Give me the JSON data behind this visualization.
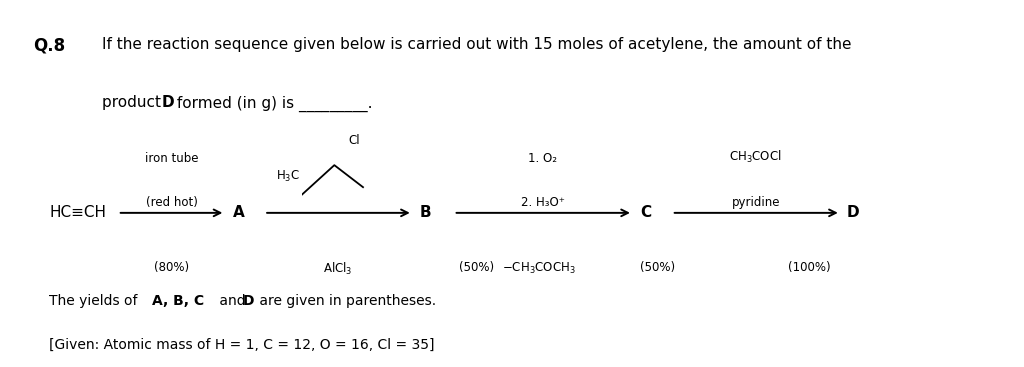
{
  "background_color": "#ffffff",
  "fig_width": 10.24,
  "fig_height": 3.67,
  "question_number": "Q.8",
  "question_text_line1": "If the reaction sequence given below is carried out with 15 moles of acetylene, the amount of the",
  "question_text_line2_pre": "product ",
  "question_text_line2_bold": "D",
  "question_text_line2_post": " formed (in g) is _________.",
  "reactant": "HC≡CH",
  "label_A": "A",
  "label_B": "B",
  "label_C": "C",
  "label_D": "D",
  "arrow1_above1": "iron tube",
  "arrow1_above2": "(red hot)",
  "arrow1_below": "(80%)",
  "arrow2_h3c": "H₃C",
  "arrow2_cl": "Cl",
  "arrow2_below": "AlCl₃",
  "arrow3_above1": "1. O₂",
  "arrow3_above2": "2. H₃O⁺",
  "arrow3_below1": "(50%)",
  "arrow3_below2": "-CH₃COCH₃",
  "arrow4_above1": "CH₃COCl",
  "arrow4_above2": "pyridine",
  "arrow4_below1": "(50%)",
  "arrow4_below2": "(100%)",
  "footer_bold1": "A, B, C",
  "footer_bold2": "D",
  "footer_line1": "The yields of ",
  "footer_mid": " and ",
  "footer_post": " are given in parentheses.",
  "footer_line2": "[Given: Atomic mass of H = 1, C = 12, O = 16, Cl = 35]"
}
